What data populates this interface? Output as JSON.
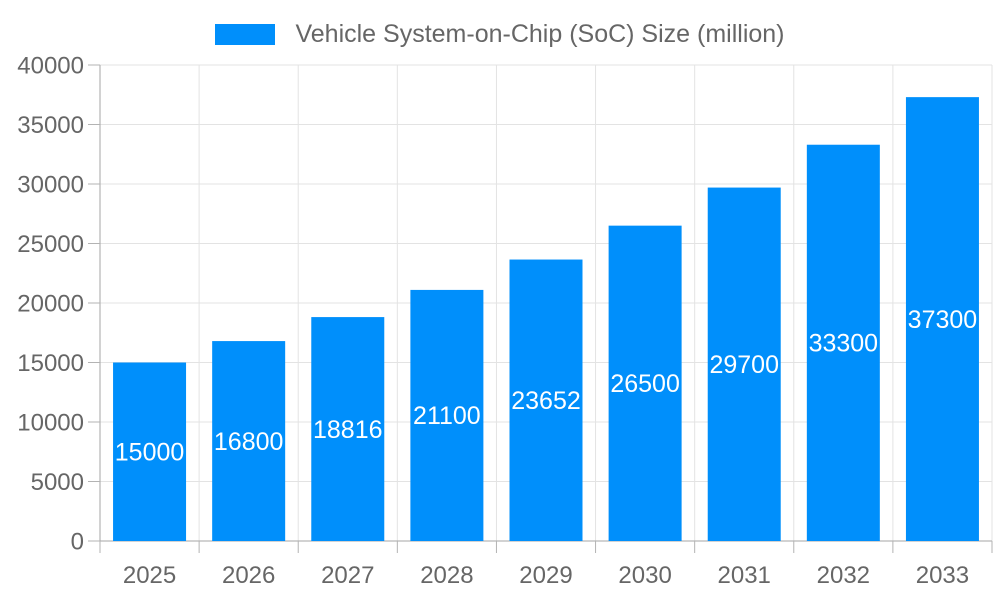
{
  "legend": {
    "label": "Vehicle System-on-Chip (SoC) Size (million)"
  },
  "chart_data": {
    "type": "bar",
    "title": "Vehicle System-on-Chip (SoC) Size (million)",
    "categories": [
      "2025",
      "2026",
      "2027",
      "2028",
      "2029",
      "2030",
      "2031",
      "2032",
      "2033"
    ],
    "values": [
      15000,
      16800,
      18816,
      21100,
      23652,
      26500,
      29700,
      33300,
      37300
    ],
    "yticks": [
      0,
      5000,
      10000,
      15000,
      20000,
      25000,
      30000,
      35000,
      40000
    ],
    "ylim": [
      0,
      40000
    ],
    "xlabel": "",
    "ylabel": "",
    "grid": true,
    "legend_position": "top",
    "bar_color": "#008ffb",
    "label_color": "#ffffff",
    "axis_text_color": "#666666",
    "grid_color": "#e3e3e3",
    "axis_line_color": "#a6a6a6",
    "tick_color": "#b3b3b3"
  }
}
